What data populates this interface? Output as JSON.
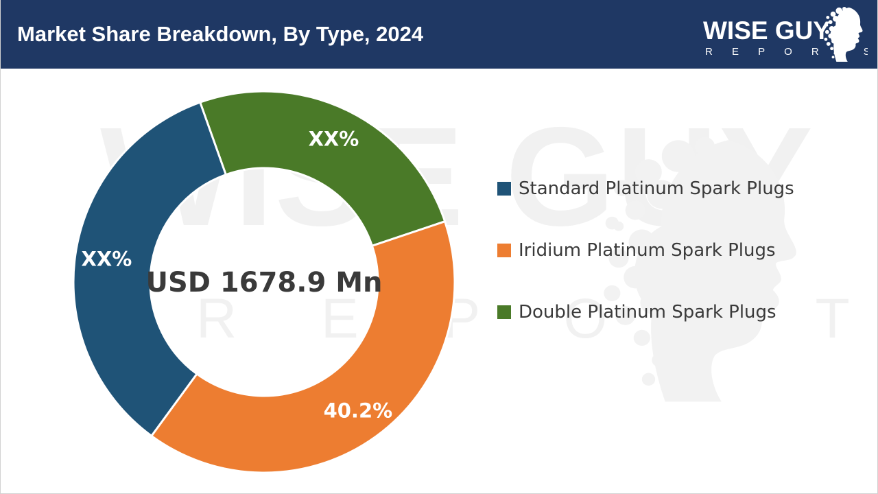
{
  "header": {
    "title": "Market Share Breakdown, By Type, 2024",
    "bg_color": "#1F3864",
    "logo": {
      "line1": "WISE GUY",
      "line2": "R E P O R T S"
    }
  },
  "chart_data": {
    "type": "pie",
    "subtype": "donut",
    "title": "Market Share Breakdown, By Type, 2024",
    "center_label": "USD 1678.9 Mn",
    "start_angle_deg": -19.6,
    "direction": "clockwise",
    "segments": [
      {
        "name": "Double Platinum Spark Plugs",
        "value": 25.3,
        "display_label": "XX%",
        "color": "#4A7A28"
      },
      {
        "name": "Iridium Platinum Spark Plugs",
        "value": 40.2,
        "display_label": "40.2%",
        "color": "#ED7D31"
      },
      {
        "name": "Standard Platinum Spark Plugs",
        "value": 34.5,
        "display_label": "XX%",
        "color": "#1F5377"
      }
    ],
    "legend": {
      "position": "right",
      "items": [
        {
          "label": "Standard Platinum Spark Plugs",
          "color": "#1F5377"
        },
        {
          "label": "Iridium Platinum Spark Plugs",
          "color": "#ED7D31"
        },
        {
          "label": "Double Platinum Spark Plugs",
          "color": "#4A7A28"
        }
      ]
    }
  },
  "watermark": {
    "line1": "WISE GUY",
    "line2": "R E P O R T S"
  }
}
